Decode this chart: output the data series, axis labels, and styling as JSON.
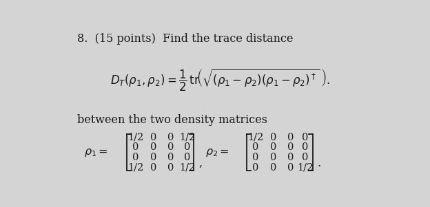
{
  "bg_color": "#d4d4d4",
  "text_color": "#1a1a1a",
  "figsize": [
    6.24,
    3.01
  ],
  "dpi": 100
}
